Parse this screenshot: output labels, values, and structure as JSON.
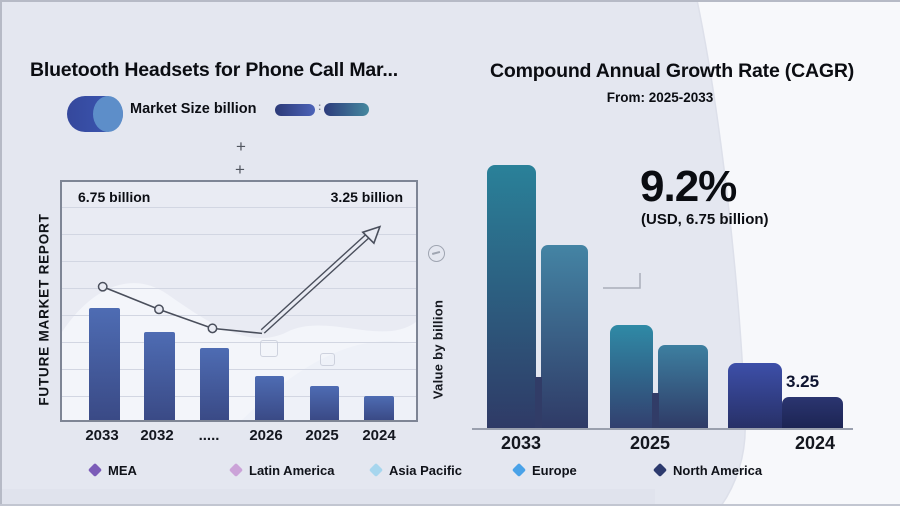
{
  "header": {
    "left_title": "Bluetooth Headsets for Phone Call Mar...",
    "market_size_label": "Market Size billion",
    "pill_separator": ":",
    "right_title": "Compound Annual Growth Rate (CAGR)",
    "right_subtitle": "From: 2025-2033"
  },
  "left_chart": {
    "annotation_top_left": "6.75 billion",
    "annotation_top_right": "3.25 billion",
    "watermark": "FUTURE MARKET REPORT",
    "plus_icon": "+"
  },
  "right_chart": {
    "cagr_value": "9.2%",
    "cagr_note": "(USD, 6.75 billion)",
    "axis_label": "Value by billion",
    "data_label_2024": "3.25"
  },
  "legend": {
    "items": [
      {
        "label": "MEA",
        "color": "#7b5cb8"
      },
      {
        "label": "Latin America",
        "color": "#cba3d8"
      },
      {
        "label": "Asia Pacific",
        "color": "#a7d6ee"
      },
      {
        "label": "Europe",
        "color": "#49a2e8"
      },
      {
        "label": "North America",
        "color": "#2c3a6e"
      }
    ]
  },
  "colors": {
    "page_bg": "#e4e7f0",
    "white_wedge": "#f7f8fb",
    "panel_bg": "#e9ebf3",
    "left_bar_top": "#4e6cb3",
    "left_bar_bottom": "#3a4a86",
    "line_stroke": "#4a4f5c",
    "merge_navy": "#313c67"
  },
  "chart_data": [
    {
      "type": "bar",
      "title": "Bluetooth Headsets for Phone Call Mar...",
      "series_label": "Market Size billion",
      "categories": [
        "2033",
        "2032",
        ".....",
        "2026",
        "2025",
        "2024"
      ],
      "values_relative": [
        1.0,
        0.79,
        0.64,
        0.39,
        0.3,
        0.21
      ],
      "annotations": {
        "top_left": "6.75 billion",
        "top_right": "3.25 billion"
      },
      "trend_line": {
        "style": "markers-then-double-line-arrow-up",
        "points_rel": [
          [
            0.115,
            0.44
          ],
          [
            0.274,
            0.535
          ],
          [
            0.425,
            0.615
          ],
          [
            0.565,
            0.636
          ]
        ],
        "arrow_start_rel": [
          0.567,
          0.628
        ],
        "arrow_end_rel": [
          0.872,
          0.215
        ]
      },
      "xlabel": "",
      "ylabel": "",
      "grid": true,
      "legend_position": "top"
    },
    {
      "type": "bar",
      "title": "Compound Annual Growth Rate (CAGR)",
      "subtitle": "From: 2025-2033",
      "cagr": "9.2%",
      "cagr_note": "(USD, 6.75 billion)",
      "categories": [
        "2033",
        "2025",
        "2024"
      ],
      "series": [
        {
          "name": "series-a",
          "values_relative": [
            1.0,
            0.394,
            0.25
          ]
        },
        {
          "name": "series-b",
          "values_relative": [
            0.697,
            0.318,
            0.121
          ]
        }
      ],
      "group_colors": [
        {
          "a": [
            "#2a8199",
            "#2f3a66"
          ],
          "b": [
            "#4484a4",
            "#2f3a66"
          ]
        },
        {
          "a": [
            "#2f8aa6",
            "#323f6e"
          ],
          "b": [
            "#3d7fa0",
            "#2f3a66"
          ]
        },
        {
          "a": [
            "#3d4fa9",
            "#273066"
          ],
          "b": [
            "#2b3570",
            "#1c2453"
          ]
        }
      ],
      "data_labels": {
        "2024": "3.25"
      },
      "xlabel": "",
      "ylabel": "Value by billion",
      "grid": false
    }
  ]
}
